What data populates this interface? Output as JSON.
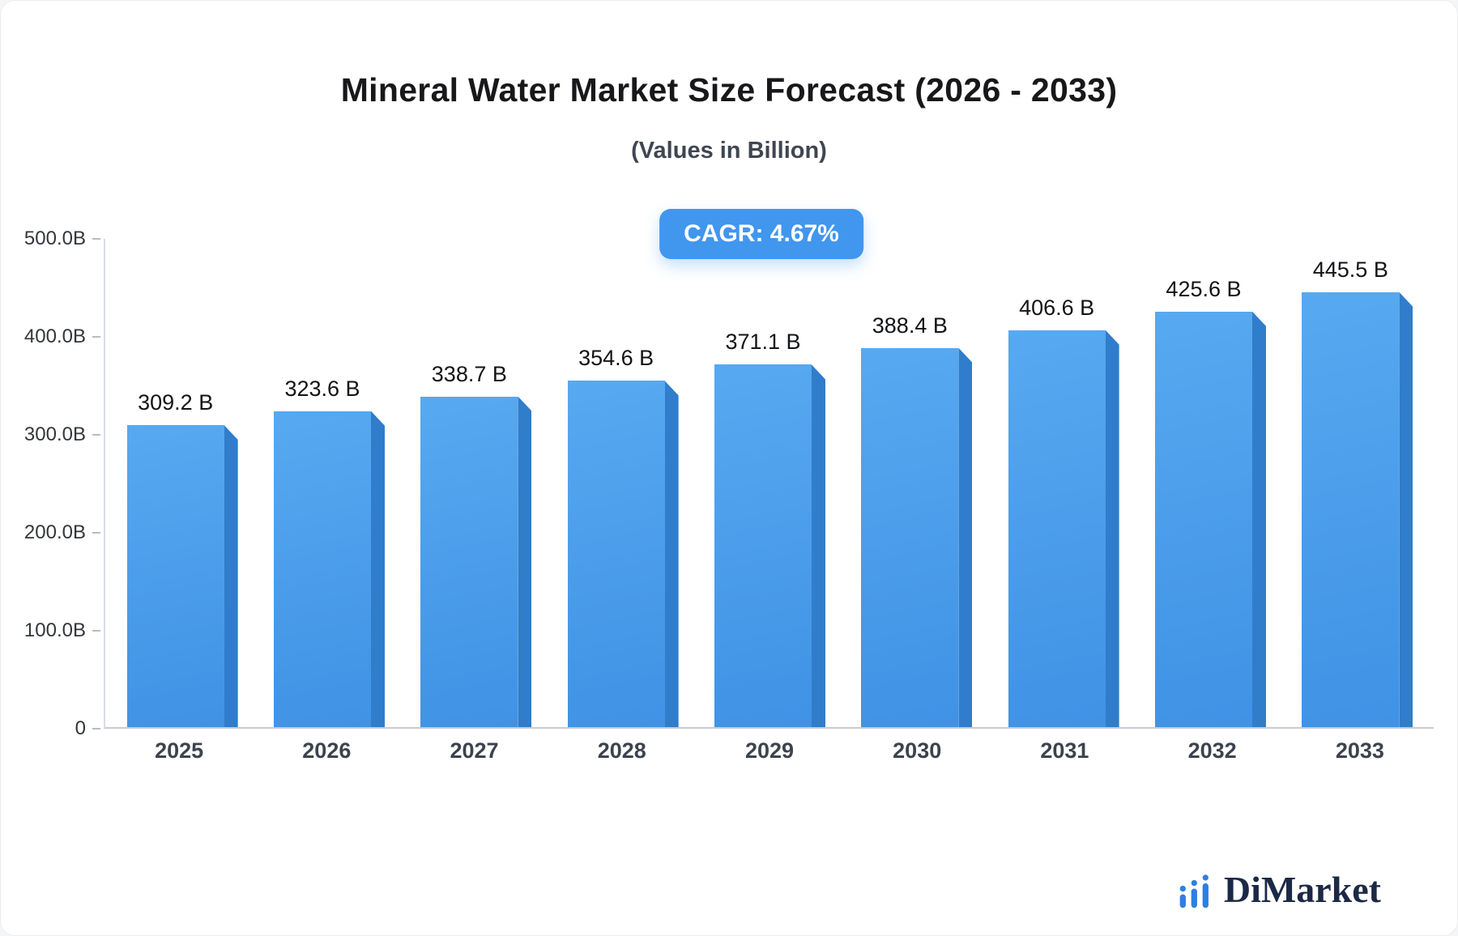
{
  "header": {
    "title": "Mineral Water Market Size Forecast (2026 - 2033)",
    "subtitle": "(Values in Billion)"
  },
  "badge": {
    "label": "CAGR: 4.67%",
    "bg": "#4196ee",
    "text_color": "#ffffff"
  },
  "chart_data": {
    "type": "bar",
    "title": "Mineral Water Market Size Forecast (2026 - 2033)",
    "subtitle": "(Values in Billion)",
    "categories": [
      "2025",
      "2026",
      "2027",
      "2028",
      "2029",
      "2030",
      "2031",
      "2032",
      "2033"
    ],
    "values": [
      309.2,
      323.6,
      338.7,
      354.6,
      371.1,
      388.4,
      406.6,
      425.6,
      445.5
    ],
    "value_labels": [
      "309.2 B",
      "323.6 B",
      "338.7 B",
      "354.6 B",
      "371.1 B",
      "388.4 B",
      "406.6 B",
      "425.6 B",
      "445.5 B"
    ],
    "xlabel": "",
    "ylabel": "",
    "ylim": [
      0,
      500
    ],
    "ytick_labels": [
      "0",
      "100.0B",
      "200.0B",
      "300.0B",
      "400.0B",
      "500.0B"
    ],
    "grid": false,
    "legend": false,
    "colors": {
      "front_top": "#57a9f0",
      "front_bottom": "#3f92e5",
      "side": "#2f7dcb",
      "axis": "#c7ccd2",
      "value_label": "#121417",
      "tick_label": "#33363b"
    }
  },
  "brand": {
    "name": "DiMarket",
    "icon": "bar-chart-logo-icon",
    "icon_color": "#2f7fe0",
    "text_color": "#1c2946"
  }
}
